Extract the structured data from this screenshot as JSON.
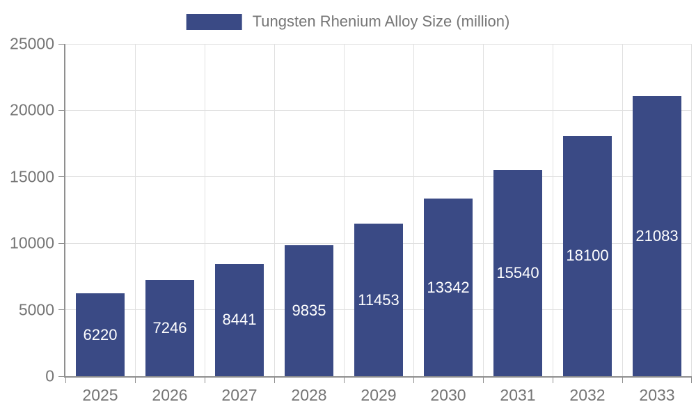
{
  "chart_data": {
    "type": "bar",
    "title": "",
    "legend_label": "Tungsten Rhenium Alloy Size (million)",
    "legend_position": "top-center",
    "categories": [
      "2025",
      "2026",
      "2027",
      "2028",
      "2029",
      "2030",
      "2031",
      "2032",
      "2033"
    ],
    "series": [
      {
        "name": "Tungsten Rhenium Alloy Size (million)",
        "values": [
          6220,
          7246,
          8441,
          9835,
          11453,
          13342,
          15540,
          18100,
          21083
        ]
      }
    ],
    "xlabel": "",
    "ylabel": "",
    "ylim": [
      0,
      25000
    ],
    "ytick_step": 5000,
    "ytick_labels": [
      "0",
      "5000",
      "10000",
      "15000",
      "20000",
      "25000"
    ],
    "grid": true,
    "value_labels_inside_bars": true,
    "colors": {
      "bar": "#3A4A85",
      "bar_label": "#FFFFFF",
      "axis_text": "#757575",
      "legend_text": "#757575",
      "grid_line": "#E0E0E0",
      "axis_line": "#8F8F8F",
      "background": "#FFFFFF"
    }
  }
}
